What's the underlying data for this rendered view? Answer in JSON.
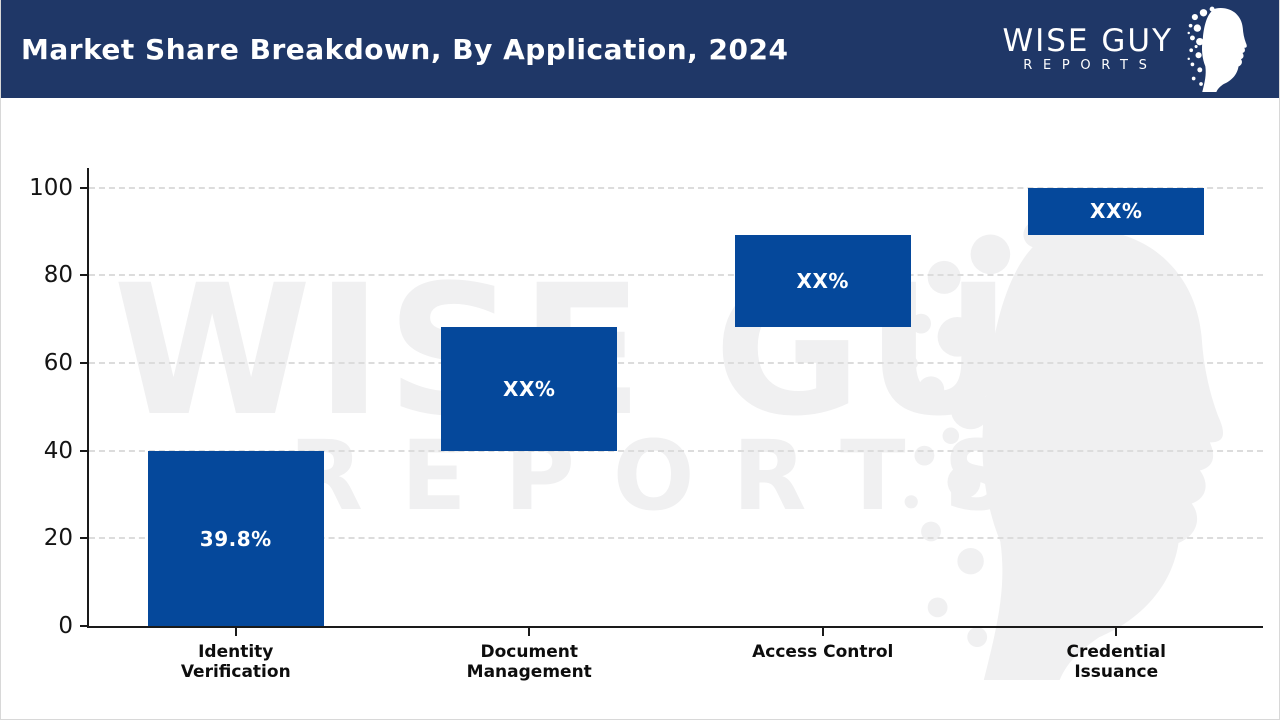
{
  "colors": {
    "header_bg": "#1F3767",
    "bar_blue": "#05489B",
    "watermark_gray": "#F0F0F1",
    "grid_gray": "#DCDCDC",
    "axis_black": "#1A1A1A",
    "border_gray": "#D8D8D8"
  },
  "header": {
    "title": "Market Share Breakdown, By Application, 2024"
  },
  "logo": {
    "line1": "WISE GUY",
    "line2": "REPORTS"
  },
  "watermark": {
    "line1": "WISE GUY",
    "line2": "REPORTS"
  },
  "chart_data": {
    "type": "bar",
    "subtype": "waterfall",
    "title": "Market Share Breakdown, By Application, 2024",
    "ylim": [
      0,
      104
    ],
    "yticks": [
      0,
      20,
      40,
      60,
      80,
      100
    ],
    "grid": "horizontal-dashed",
    "legend": "none",
    "bar_color": "#05489B",
    "categories": [
      "Identity Verification",
      "Document Management",
      "Access Control",
      "Credential Issuance"
    ],
    "category_lines": [
      [
        "Identity",
        "Verification"
      ],
      [
        "Document",
        "Management"
      ],
      [
        "Access Control"
      ],
      [
        "Credential",
        "Issuance"
      ]
    ],
    "segments": [
      {
        "category": "Identity Verification",
        "start": 0,
        "end": 39.8,
        "label": "39.8%"
      },
      {
        "category": "Document Management",
        "start": 39.8,
        "end": 68.2,
        "label": "XX%"
      },
      {
        "category": "Access Control",
        "start": 68.2,
        "end": 89.1,
        "label": "XX%"
      },
      {
        "category": "Credential Issuance",
        "start": 89.1,
        "end": 100,
        "label": "XX%"
      }
    ]
  }
}
